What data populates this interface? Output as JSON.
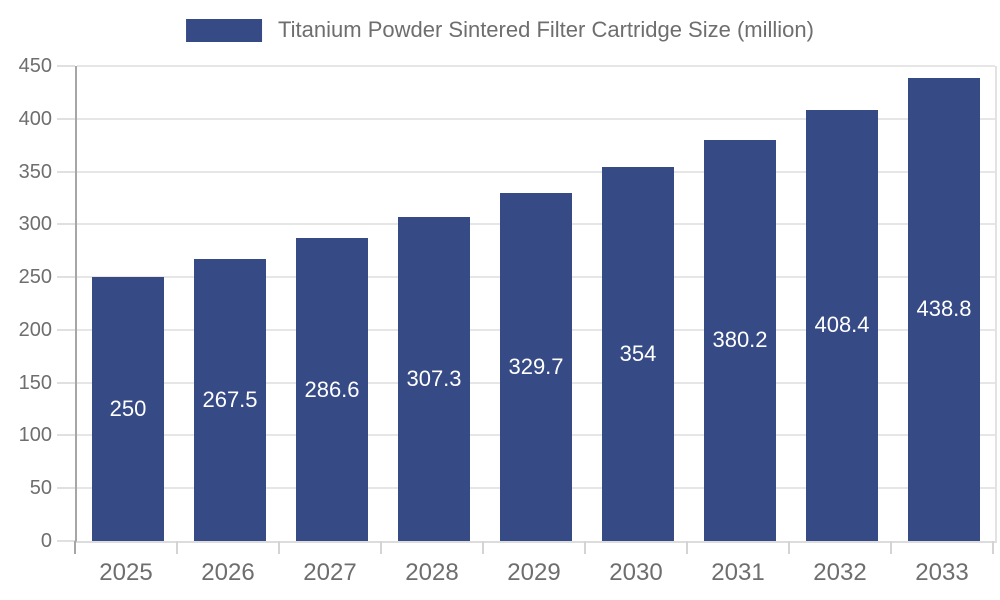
{
  "legend": {
    "label": "Titanium Powder Sintered Filter Cartridge Size (million)"
  },
  "chart_data": {
    "type": "bar",
    "title": "Titanium Powder Sintered Filter Cartridge Size (million)",
    "categories": [
      "2025",
      "2026",
      "2027",
      "2028",
      "2029",
      "2030",
      "2031",
      "2032",
      "2033"
    ],
    "values": [
      250,
      267.5,
      286.6,
      307.3,
      329.7,
      354,
      380.2,
      408.4,
      438.8
    ],
    "value_labels": [
      "250",
      "267.5",
      "286.6",
      "307.3",
      "329.7",
      "354",
      "380.2",
      "408.4",
      "438.8"
    ],
    "xlabel": "",
    "ylabel": "",
    "ylim": [
      0,
      450
    ],
    "ytick_step": 50,
    "yticks": [
      0,
      50,
      100,
      150,
      200,
      250,
      300,
      350,
      400,
      450
    ],
    "grid": true,
    "legend_position": "top-center",
    "colors": {
      "bar": "#364a85",
      "value_label": "#ffffff",
      "axis_text": "#6e6e6e",
      "gridline": "#e6e6e6",
      "y_axis_line": "#a6a6a6",
      "background": "#ffffff"
    }
  }
}
